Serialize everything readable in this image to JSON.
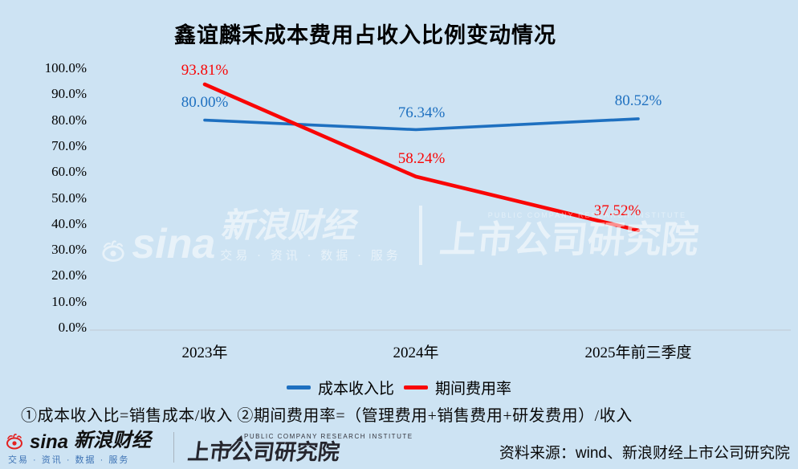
{
  "title": "鑫谊麟禾成本费用占收入比例变动情况",
  "colors": {
    "background": "#cde3f3",
    "blue": "#1e70c0",
    "red": "#f90606",
    "axis": "#c3ced9",
    "sina_red": "#e32221",
    "tagline_blue": "#3f74b5",
    "institute_dark": "#26262e"
  },
  "chart_data": {
    "type": "line",
    "title": "鑫谊麟禾成本费用占收入比例变动情况",
    "categories": [
      "2023年",
      "2024年",
      "2025年前三季度"
    ],
    "series": [
      {
        "name": "成本收入比",
        "color_key": "blue",
        "values": [
          80.0,
          76.34,
          80.52
        ],
        "point_labels": [
          "80.00%",
          "76.34%",
          "80.52%"
        ]
      },
      {
        "name": "期间费用率",
        "color_key": "red",
        "values": [
          93.81,
          58.24,
          37.52
        ],
        "point_labels": [
          "93.81%",
          "58.24%",
          "37.52%"
        ]
      }
    ],
    "xlabel": "",
    "ylabel": "",
    "ylim": [
      0,
      100
    ],
    "ytick_step": 10,
    "ytick_labels": [
      "100.0%",
      "90.0%",
      "80.0%",
      "70.0%",
      "60.0%",
      "50.0%",
      "40.0%",
      "30.0%",
      "20.0%",
      "10.0%",
      "0.0%"
    ],
    "grid": false,
    "legend_position": "bottom"
  },
  "footnote": "①成本收入比=销售成本/收入 ②期间费用率=（管理费用+销售费用+研发费用）/收入",
  "watermark": {
    "sina_word": "sina",
    "brand_cn": "新浪财经",
    "tagline": "交易 · 资讯 · 数据 · 服务",
    "institute_en": "PUBLIC COMPANY RESEARCH INSTITUTE",
    "institute_cn": "上市公司研究院"
  },
  "footer": {
    "sina_word": "sina",
    "sina_brand": "新浪财经",
    "sina_tagline": "交易 · 资讯 · 数据 · 服务",
    "institute_en": "PUBLIC COMPANY RESEARCH INSTITUTE",
    "institute_cn": "上市公司研究院",
    "source": "资料来源：wind、新浪财经上市公司研究院"
  }
}
